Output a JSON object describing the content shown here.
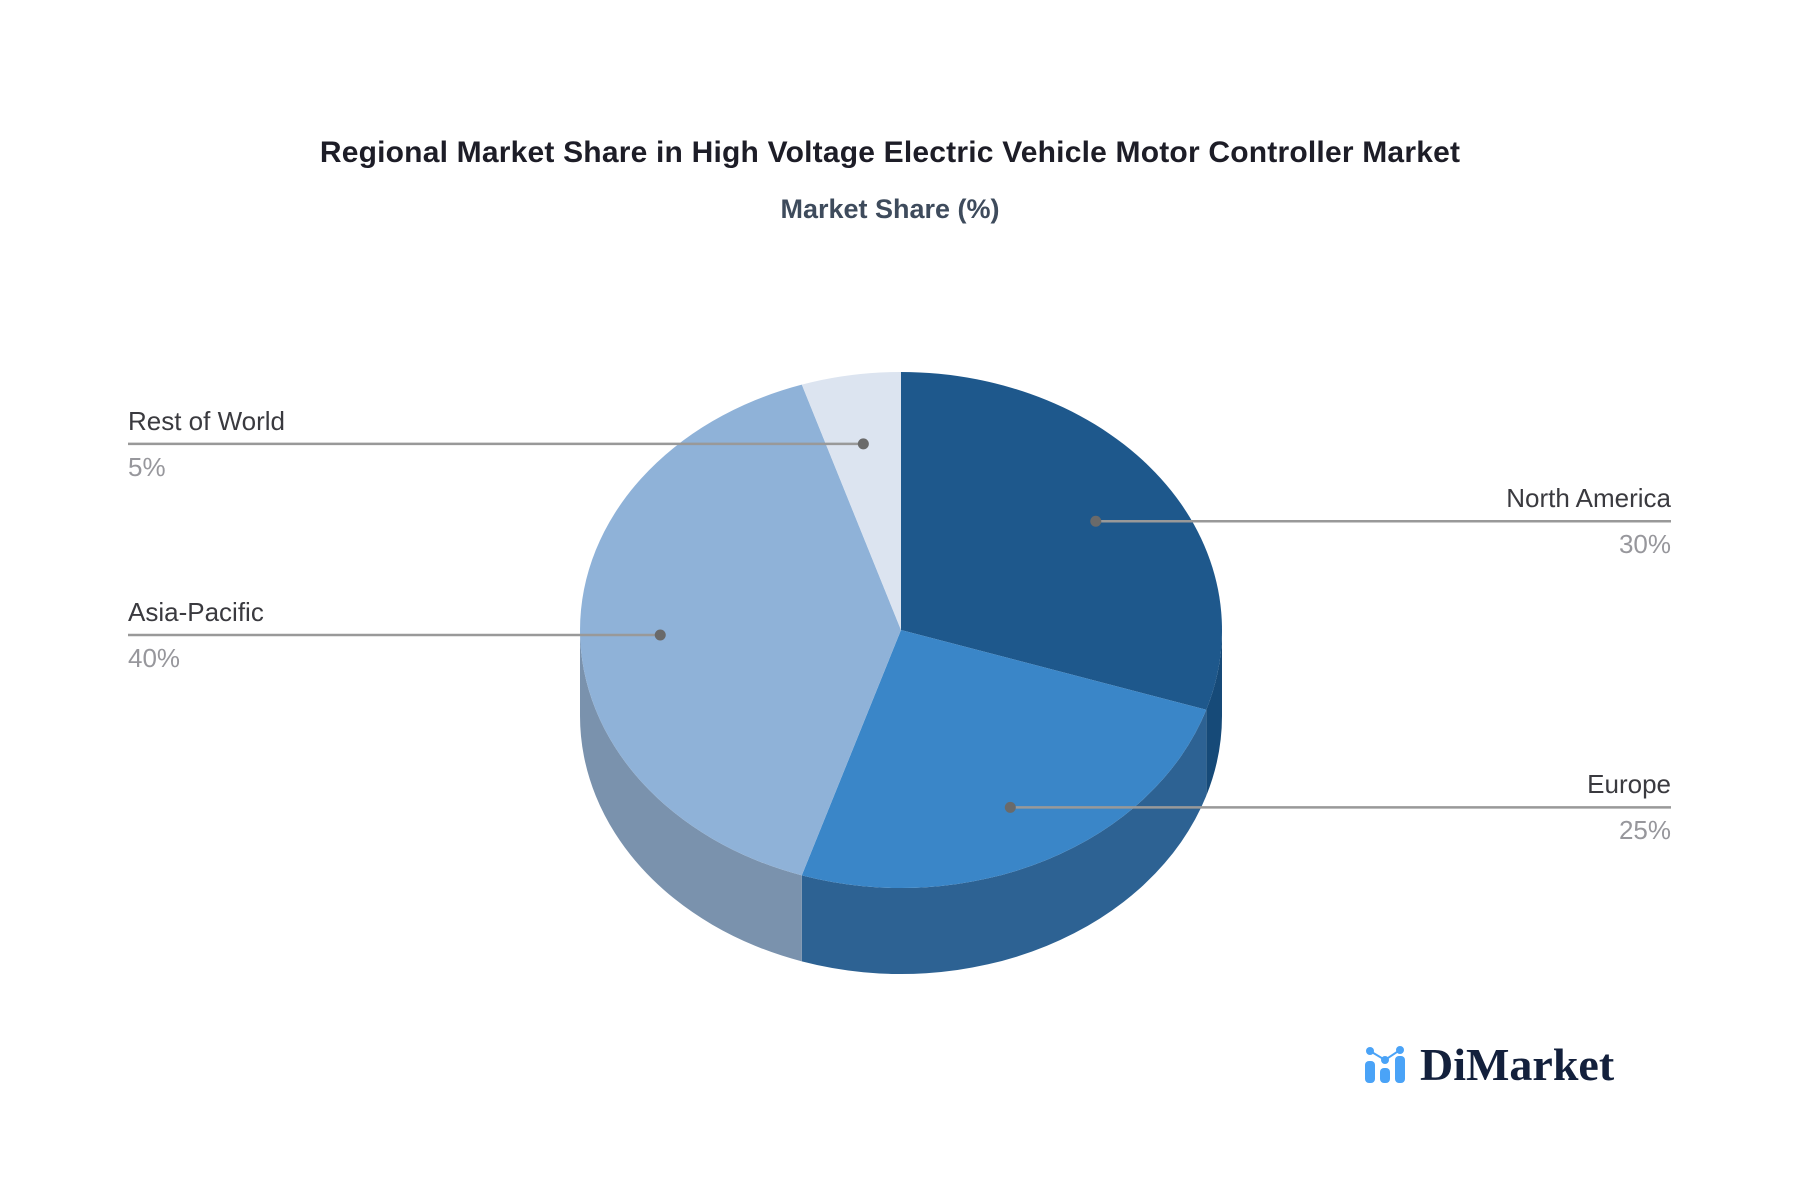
{
  "header": {
    "title": "Regional Market Share in High Voltage Electric Vehicle Motor Controller Market",
    "subtitle": "Market Share (%)"
  },
  "chart_data": {
    "type": "pie",
    "title": "Regional Market Share in High Voltage Electric Vehicle Motor Controller Market",
    "subtitle": "Market Share (%)",
    "unit": "%",
    "style": "3d-pie",
    "start_angle_deg": 0,
    "direction": "clockwise",
    "legend_position": "callout-labels",
    "slices": [
      {
        "label": "North America",
        "value": 30,
        "pct_label": "30%",
        "color": "#1e588c",
        "side_color": "#164a78"
      },
      {
        "label": "Europe",
        "value": 25,
        "pct_label": "25%",
        "color": "#3a86c8",
        "side_color": "#2d6293"
      },
      {
        "label": "Asia-Pacific",
        "value": 40,
        "pct_label": "40%",
        "color": "#8fb2d8",
        "side_color": "#7a92ad"
      },
      {
        "label": "Rest of World",
        "value": 5,
        "pct_label": "5%",
        "color": "#dce4f0",
        "side_color": "#c2cede"
      }
    ]
  },
  "callouts": {
    "line_color": "#999999",
    "dot_color": "#6a6a6a",
    "name_color": "#3a3a3f",
    "pct_color": "#97979c"
  },
  "logo": {
    "text": "DiMarket",
    "icon": "mini-bar-chart-icon",
    "icon_color": "#4aa3f7",
    "text_color": "#13203c"
  }
}
